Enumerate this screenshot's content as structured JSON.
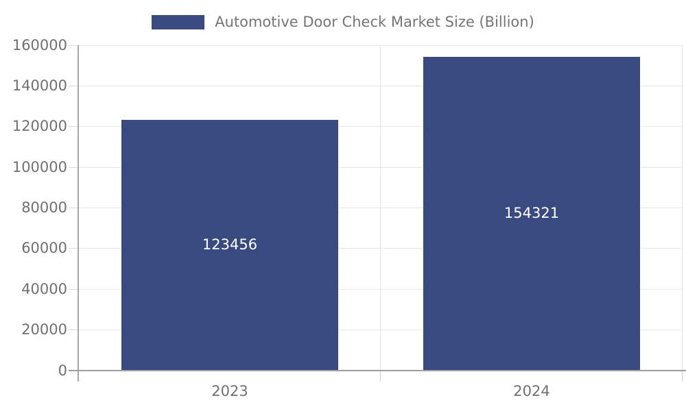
{
  "legend": {
    "label": "Automotive Door Check Market Size (Billion)",
    "swatch_color": "#394a80"
  },
  "chart_data": {
    "type": "bar",
    "title": "Automotive Door Check Market Size (Billion)",
    "categories": [
      "2023",
      "2024"
    ],
    "values": [
      123456,
      154321
    ],
    "value_labels": [
      "123456",
      "154321"
    ],
    "xlabel": "",
    "ylabel": "",
    "ylim": [
      0,
      160000
    ],
    "ytick_step": 20000,
    "yticks": [
      0,
      20000,
      40000,
      60000,
      80000,
      100000,
      120000,
      140000,
      160000
    ],
    "grid": true,
    "legend_position": "top-center",
    "bar_color": "#394a80",
    "value_label_color": "#ffffff",
    "axis_text_color": "#707070",
    "gridline_color": "#e8e8e8"
  }
}
